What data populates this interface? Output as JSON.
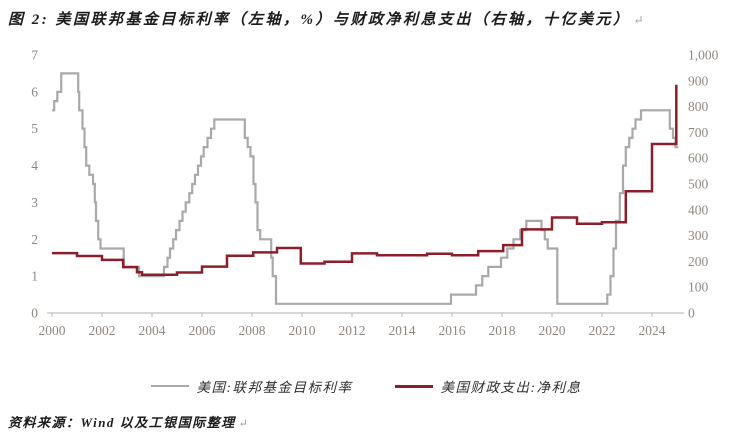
{
  "title": {
    "text": "图 2: 美国联邦基金目标利率（左轴，%）与财政净利息支出（右轴，十亿美元）",
    "return_mark": "↵"
  },
  "source": {
    "text": "资料来源：Wind 以及工银国际整理",
    "return_mark": "↵"
  },
  "colors": {
    "rate_line": "#a9a9a9",
    "interest_line": "#8c1d2a",
    "axis_text": "#8f8882",
    "axis_line": "#c0c0c0",
    "title_text": "#1c1c1c",
    "legend_text": "#2e2e2e",
    "return_mark": "#8b9bb0"
  },
  "chart_data": {
    "type": "line",
    "title": "美国联邦基金目标利率（左轴，%）与财政净利息支出（右轴，十亿美元）",
    "legend_position": "bottom",
    "grid": false,
    "x_axis": {
      "min": 2000,
      "max": 2025.3,
      "tick_years": [
        2000,
        2002,
        2004,
        2006,
        2008,
        2010,
        2012,
        2014,
        2016,
        2018,
        2020,
        2022,
        2024
      ]
    },
    "left_axis": {
      "label": "左轴，%",
      "min": 0,
      "max": 7,
      "ticks": [
        0,
        1,
        2,
        3,
        4,
        5,
        6,
        7
      ]
    },
    "right_axis": {
      "label": "右轴，十亿美元",
      "min": 0,
      "max": 1000,
      "tick_step": 100,
      "ticks": [
        "0",
        "100",
        "200",
        "300",
        "400",
        "500",
        "600",
        "700",
        "800",
        "900",
        "1,000"
      ]
    },
    "series": [
      {
        "name": "美国:联邦基金目标利率",
        "axis": "left",
        "interpolation": "step-after",
        "color_key": "rate_line",
        "width": 2.2,
        "points": [
          [
            2000.0,
            5.5
          ],
          [
            2000.09,
            5.75
          ],
          [
            2000.21,
            6.0
          ],
          [
            2000.37,
            6.5
          ],
          [
            2001.05,
            6.0
          ],
          [
            2001.09,
            5.5
          ],
          [
            2001.22,
            5.0
          ],
          [
            2001.3,
            4.5
          ],
          [
            2001.37,
            4.0
          ],
          [
            2001.49,
            3.75
          ],
          [
            2001.64,
            3.5
          ],
          [
            2001.71,
            3.0
          ],
          [
            2001.76,
            2.5
          ],
          [
            2001.85,
            2.0
          ],
          [
            2001.94,
            1.75
          ],
          [
            2002.87,
            1.25
          ],
          [
            2003.48,
            1.0
          ],
          [
            2004.48,
            1.25
          ],
          [
            2004.62,
            1.5
          ],
          [
            2004.72,
            1.75
          ],
          [
            2004.85,
            2.0
          ],
          [
            2004.96,
            2.25
          ],
          [
            2005.1,
            2.5
          ],
          [
            2005.22,
            2.75
          ],
          [
            2005.35,
            3.0
          ],
          [
            2005.49,
            3.25
          ],
          [
            2005.61,
            3.5
          ],
          [
            2005.72,
            3.75
          ],
          [
            2005.84,
            4.0
          ],
          [
            2005.96,
            4.25
          ],
          [
            2006.07,
            4.5
          ],
          [
            2006.22,
            4.75
          ],
          [
            2006.36,
            5.0
          ],
          [
            2006.49,
            5.25
          ],
          [
            2007.71,
            4.75
          ],
          [
            2007.83,
            4.5
          ],
          [
            2007.94,
            4.25
          ],
          [
            2008.06,
            3.5
          ],
          [
            2008.14,
            3.0
          ],
          [
            2008.22,
            2.25
          ],
          [
            2008.33,
            2.0
          ],
          [
            2008.77,
            1.5
          ],
          [
            2008.83,
            1.0
          ],
          [
            2008.96,
            0.25
          ],
          [
            2015.96,
            0.5
          ],
          [
            2016.96,
            0.75
          ],
          [
            2017.21,
            1.0
          ],
          [
            2017.45,
            1.25
          ],
          [
            2017.96,
            1.5
          ],
          [
            2018.21,
            1.75
          ],
          [
            2018.46,
            2.0
          ],
          [
            2018.73,
            2.25
          ],
          [
            2018.97,
            2.5
          ],
          [
            2019.58,
            2.25
          ],
          [
            2019.71,
            2.0
          ],
          [
            2019.83,
            1.75
          ],
          [
            2020.21,
            0.25
          ],
          [
            2022.21,
            0.5
          ],
          [
            2022.34,
            1.0
          ],
          [
            2022.46,
            1.75
          ],
          [
            2022.56,
            2.5
          ],
          [
            2022.71,
            3.25
          ],
          [
            2022.84,
            4.0
          ],
          [
            2022.95,
            4.5
          ],
          [
            2023.09,
            4.75
          ],
          [
            2023.22,
            5.0
          ],
          [
            2023.34,
            5.25
          ],
          [
            2023.56,
            5.5
          ],
          [
            2024.71,
            5.0
          ],
          [
            2024.84,
            4.75
          ],
          [
            2024.94,
            4.5
          ],
          [
            2025.05,
            4.5
          ]
        ]
      },
      {
        "name": "美国财政支出:净利息",
        "axis": "right",
        "interpolation": "step-after",
        "color_key": "interest_line",
        "width": 2.5,
        "points": [
          [
            2000.0,
            232
          ],
          [
            2001.0,
            221
          ],
          [
            2002.0,
            206
          ],
          [
            2002.85,
            178
          ],
          [
            2003.4,
            158
          ],
          [
            2003.6,
            148
          ],
          [
            2005.0,
            157
          ],
          [
            2006.0,
            180
          ],
          [
            2007.0,
            222
          ],
          [
            2008.05,
            235
          ],
          [
            2009.0,
            252
          ],
          [
            2009.95,
            192
          ],
          [
            2010.9,
            199
          ],
          [
            2012.0,
            231
          ],
          [
            2013.0,
            224
          ],
          [
            2015.0,
            230
          ],
          [
            2016.0,
            224
          ],
          [
            2017.05,
            240
          ],
          [
            2018.05,
            263
          ],
          [
            2018.8,
            324
          ],
          [
            2020.0,
            370
          ],
          [
            2021.0,
            346
          ],
          [
            2022.0,
            352
          ],
          [
            2022.95,
            472
          ],
          [
            2024.0,
            655
          ],
          [
            2024.97,
            880
          ],
          [
            2025.02,
            880
          ]
        ]
      }
    ]
  }
}
